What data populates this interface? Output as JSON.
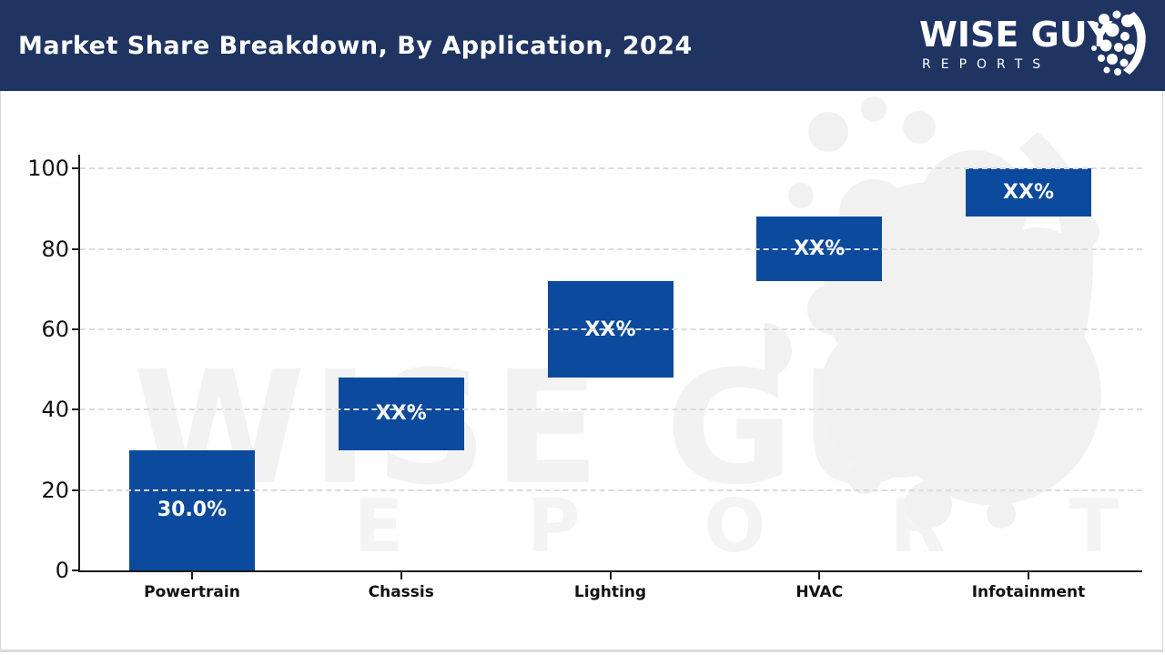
{
  "header": {
    "title": "Market Share Breakdown, By Application, 2024",
    "bg_color": "#1f3461",
    "logo": {
      "line1": "WISE GUY",
      "line2": "R E P O R T S"
    }
  },
  "watermark": {
    "line1": "WISE GUY",
    "line2": "R E P O R T S"
  },
  "chart_data": {
    "type": "waterfall",
    "title": "Market Share Breakdown, By Application, 2024",
    "categories": [
      "Powertrain",
      "Chassis",
      "Lighting",
      "HVAC",
      "Infotainment"
    ],
    "segments": [
      {
        "category": "Powertrain",
        "start": 0,
        "end": 30,
        "value": 30,
        "label": "30.0%"
      },
      {
        "category": "Chassis",
        "start": 30,
        "end": 48,
        "value": 18,
        "label": "XX%"
      },
      {
        "category": "Lighting",
        "start": 48,
        "end": 72,
        "value": 24,
        "label": "XX%"
      },
      {
        "category": "HVAC",
        "start": 72,
        "end": 88,
        "value": 16,
        "label": "XX%"
      },
      {
        "category": "Infotainment",
        "start": 88,
        "end": 100,
        "value": 12,
        "label": "XX%"
      }
    ],
    "y_ticks": [
      0,
      20,
      40,
      60,
      80,
      100
    ],
    "ylim": [
      0,
      103.5
    ],
    "xlabel": "",
    "ylabel": "",
    "grid": true,
    "gridline_style": "dashed",
    "bar_color": "#0c4a9e",
    "bar_label_color": "#ffffff",
    "axis_color": "#1a1a1a",
    "legend": "none"
  }
}
